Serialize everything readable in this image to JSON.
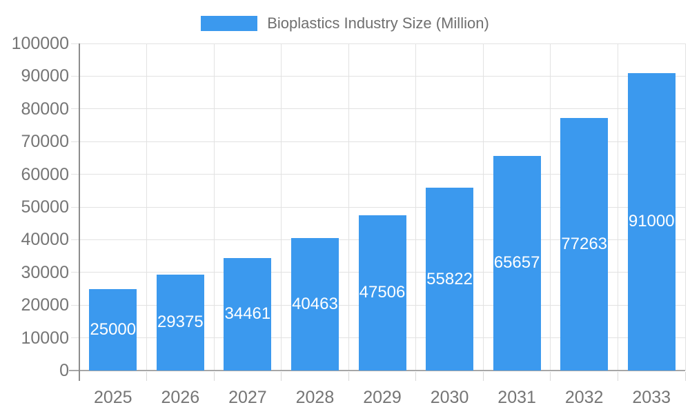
{
  "chart_data": {
    "type": "bar",
    "title": "Bioplastics Industry Size (Million)",
    "legend": {
      "label": "Bioplastics Industry Size (Million)",
      "position": "top-center"
    },
    "categories": [
      "2025",
      "2026",
      "2027",
      "2028",
      "2029",
      "2030",
      "2031",
      "2032",
      "2033"
    ],
    "series": [
      {
        "name": "Bioplastics Industry Size (Million)",
        "values": [
          25000,
          29375,
          34461,
          40463,
          47506,
          55822,
          65657,
          77263,
          91000
        ]
      }
    ],
    "bar_value_labels": [
      "25000",
      "29375",
      "34461",
      "40463",
      "47506",
      "55822",
      "65657",
      "77263",
      "91000"
    ],
    "xlabel": "",
    "ylabel": "",
    "ylim": [
      0,
      100000
    ],
    "ytick_step": 10000,
    "ytick_labels": [
      "0",
      "10000",
      "20000",
      "30000",
      "40000",
      "50000",
      "60000",
      "70000",
      "80000",
      "90000",
      "100000"
    ],
    "grid": true,
    "colors": {
      "bar": "#3b99ee",
      "axis_text": "#757575",
      "legend_text": "#6f6f6f",
      "gridline": "#e2e2e2",
      "tick_below": "#d8d8d8",
      "baseline": "#a6a6a6",
      "yaxis_line": "#8c8c8c",
      "bar_value_text": "#ffffff",
      "background": "#ffffff"
    }
  }
}
